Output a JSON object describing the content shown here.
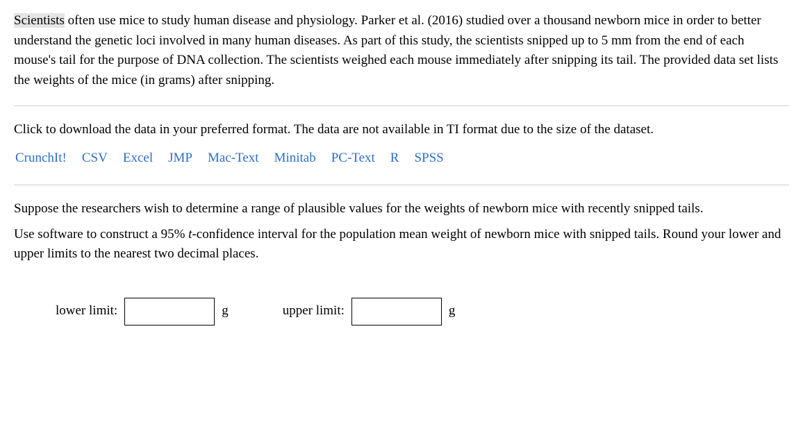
{
  "intro": {
    "highlighted_word": "Scientists",
    "rest_of_paragraph": " often use mice to study human disease and physiology. Parker et al. (2016) studied over a thousand newborn mice in order to better understand the genetic loci involved in many human diseases. As part of this study, the scientists snipped up to 5 mm from the end of each mouse's tail for the purpose of DNA collection. The scientists weighed each mouse immediately after snipping its tail. The provided data set lists the weights of the mice (in grams) after snipping."
  },
  "download_prompt": "Click to download the data in your preferred format. The data are not available in TI format due to the size of the dataset.",
  "download_links": [
    "CrunchIt!",
    "CSV",
    "Excel",
    "JMP",
    "Mac-Text",
    "Minitab",
    "PC-Text",
    "R",
    "SPSS"
  ],
  "question": {
    "p1": "Suppose the researchers wish to determine a range of plausible values for the weights of newborn mice with recently snipped tails.",
    "p2_pre": "Use software to construct a 95% ",
    "p2_t": "t",
    "p2_post": "-confidence interval for the population mean weight of newborn mice with snipped tails. Round your lower and upper limits to the nearest two decimal places."
  },
  "answers": {
    "lower_label": "lower limit:",
    "lower_value": "",
    "lower_unit": "g",
    "upper_label": "upper limit:",
    "upper_value": "",
    "upper_unit": "g"
  },
  "colors": {
    "link": "#2a6fc9",
    "divider": "#d0d0d0",
    "highlight_bg": "#e5e5e5",
    "text": "#000000",
    "background": "#ffffff"
  }
}
